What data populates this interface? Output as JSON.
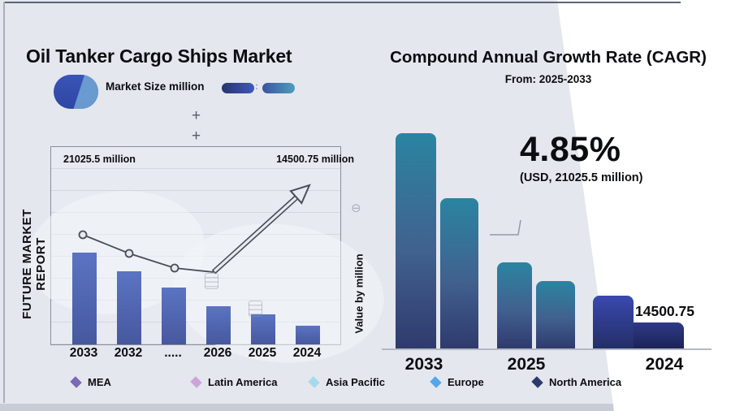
{
  "header": {
    "title": "Oil Tanker Cargo Ships  Market",
    "market_size_label": "Market Size million"
  },
  "cagr_header": {
    "title": "Compound Annual Growth Rate (CAGR)",
    "subtitle": "From: 2025-2033"
  },
  "cagr": {
    "value": "4.85%",
    "note": "(USD, 21025.5 million)"
  },
  "left_chart": {
    "annotation_left": "21025.5 million",
    "annotation_right": "14500.75 million",
    "side_label_left": "FUTURE MARKET REPORT",
    "side_label_right": "Value by million"
  },
  "right_chart": {
    "annotation_value": "14500.75"
  },
  "icons": {
    "plus": "+",
    "circled_minus": "⊖",
    "colon_separator": ":"
  },
  "chart_data": [
    {
      "type": "bar",
      "combo": "bar+line+arrow",
      "title": "Oil Tanker Cargo Ships Market — Market Size million",
      "categories": [
        "2033",
        "2032",
        ".....",
        "2026",
        "2025",
        "2024"
      ],
      "series": [
        {
          "name": "Market Size bars (relative height %)",
          "values": [
            100,
            80,
            62,
            42,
            33,
            20
          ]
        },
        {
          "name": "Trend line (relative height %)",
          "values": [
            57,
            47,
            39,
            37,
            null,
            null
          ]
        }
      ],
      "annotations": [
        {
          "text": "21025.5 million",
          "position": "top-left"
        },
        {
          "text": "14500.75 million",
          "position": "top-right"
        }
      ],
      "xlabel": "",
      "ylabel": "Value by million",
      "side_label": "FUTURE MARKET REPORT",
      "axis_numeric_labels_shown": false,
      "arrow": "double-outline arrow rising from 2026 trough toward the 14500.75 million label",
      "grid": true
    },
    {
      "type": "bar",
      "title": "Compound Annual Growth Rate (CAGR) From: 2025-2033",
      "categories": [
        "2033",
        "2025",
        "2024"
      ],
      "series": [
        {
          "name": "bar-left (relative height %)",
          "values": [
            100,
            40,
            24.5
          ]
        },
        {
          "name": "bar-right (relative height %)",
          "values": [
            70,
            31.5,
            12
          ]
        }
      ],
      "annotations": [
        {
          "text": "14500.75",
          "position": "right of 2024 bars"
        }
      ],
      "headline_value": "4.85%",
      "headline_note": "(USD, 21025.5 million)",
      "grid": false
    }
  ],
  "legend": {
    "items": [
      {
        "label": "MEA",
        "color": "#7a68b8"
      },
      {
        "label": "Latin America",
        "color": "#cda4da"
      },
      {
        "label": "Asia Pacific",
        "color": "#a6d9ec"
      },
      {
        "label": "Europe",
        "color": "#55a7ea"
      },
      {
        "label": "North America",
        "color": "#2c3a6b"
      }
    ]
  },
  "colors": {
    "page_background": "#e4e7ee",
    "left_bar": "#5b74c2",
    "right_bar_top": "#2b84a2",
    "right_bar_bottom": "#2f3a6d",
    "bar_2024_indigo": "#3a49b0",
    "text": "#0c0d10"
  }
}
